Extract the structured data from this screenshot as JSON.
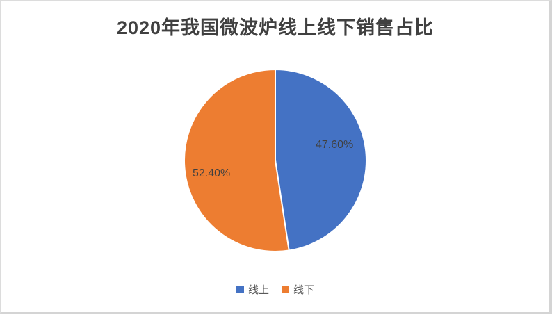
{
  "chart_data": {
    "type": "pie",
    "title": "2020年我国微波炉线上线下销售占比",
    "series": [
      {
        "name": "线上",
        "value": 47.6,
        "label": "47.60%",
        "color": "#4472C4"
      },
      {
        "name": "线下",
        "value": 52.4,
        "label": "52.40%",
        "color": "#ED7D31"
      }
    ],
    "start_angle_deg": 0,
    "direction": "clockwise",
    "legend_position": "bottom",
    "slice_separator_color": "#ffffff",
    "label_color": "#404040",
    "title_color": "#404040"
  }
}
